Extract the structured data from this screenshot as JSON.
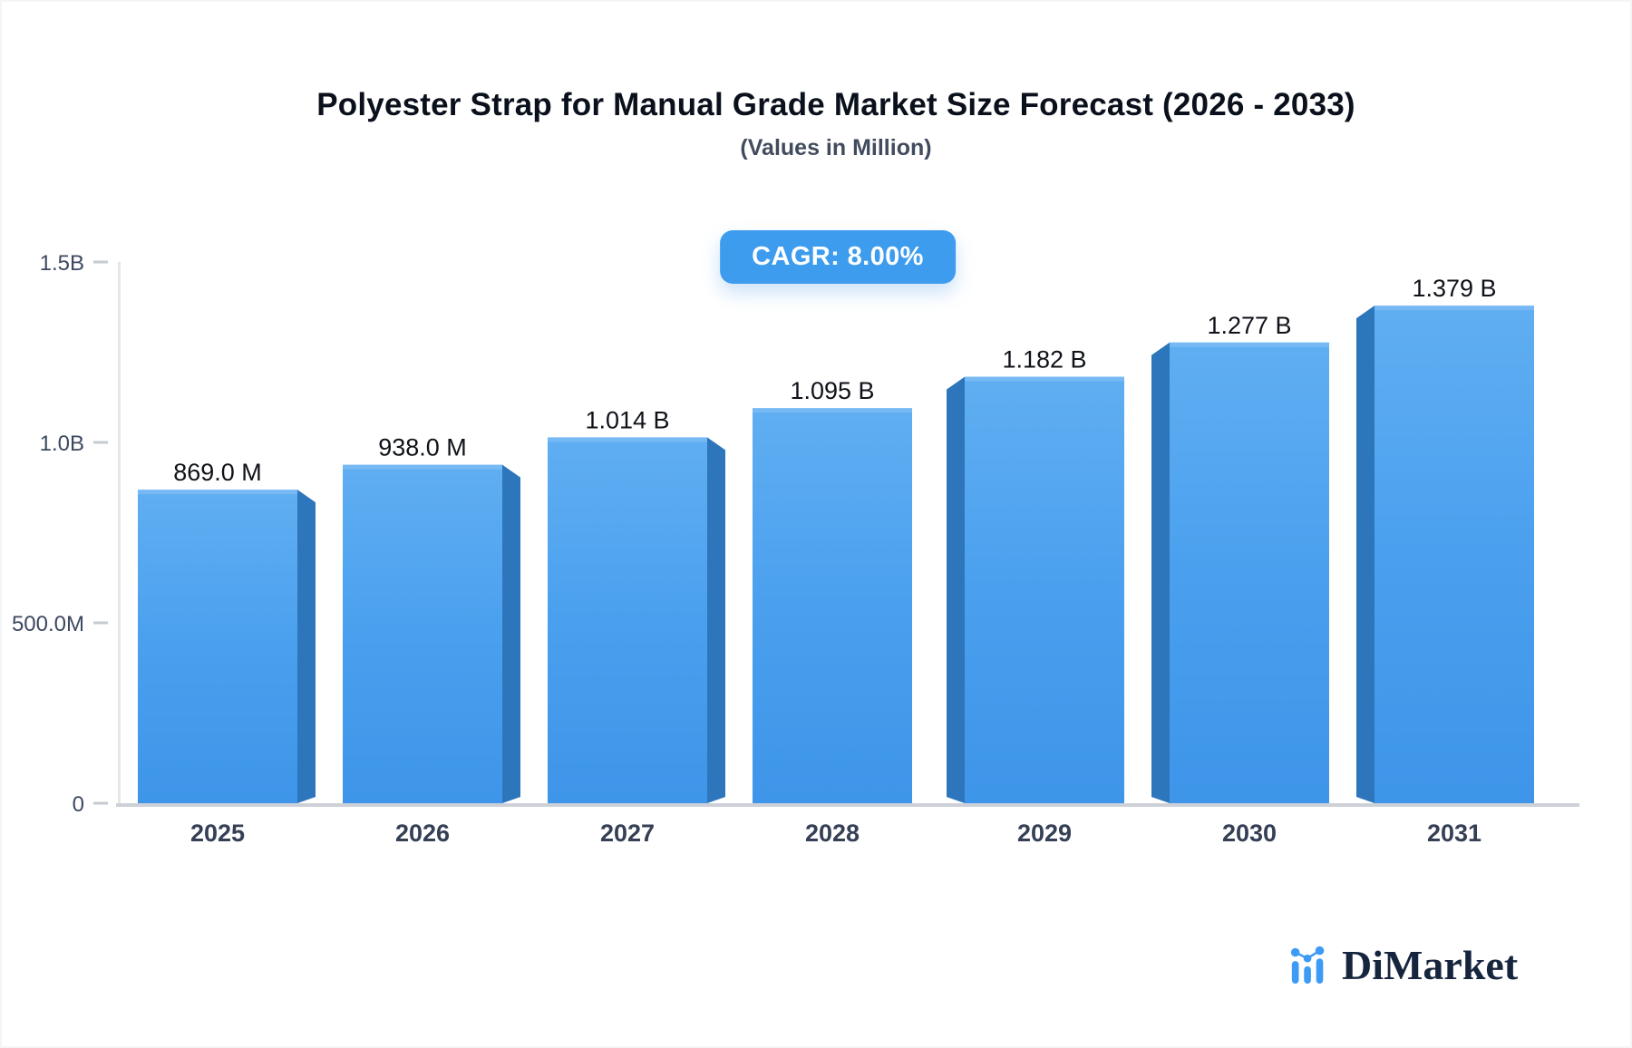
{
  "title": "Polyester Strap for Manual Grade Market Size Forecast (2026 - 2033)",
  "subtitle": "(Values in Million)",
  "cagr_badge": "CAGR: 8.00%",
  "logo": {
    "text": "DiMarket",
    "icon": "bar-chart-with-trend-dots"
  },
  "colors": {
    "badge_bg": "#3d9cee",
    "bar_front_top": "#60aef2",
    "bar_front_bottom": "#3e95e9",
    "bar_side": "#2e76bb",
    "axis_line": "#e3e6ea",
    "baseline": "#cdd1d7",
    "tick": "#c6cbd2",
    "value_label": "#0f1218",
    "year_label": "#353f55",
    "y_label": "#3d4961",
    "logo_blue": "#3d9bf5",
    "logo_navy": "#16253e"
  },
  "chart_data": {
    "type": "bar",
    "title": "Polyester Strap for Manual Grade Market Size Forecast (2026 - 2033)",
    "subtitle": "(Values in Million)",
    "annotation": "CAGR: 8.00%",
    "categories": [
      "2025",
      "2026",
      "2027",
      "2028",
      "2029",
      "2030",
      "2031"
    ],
    "values_millions": [
      869,
      938,
      1014,
      1095,
      1182,
      1277,
      1379
    ],
    "bar_labels": [
      "869.0 M",
      "938.0 M",
      "1.014 B",
      "1.095 B",
      "1.182 B",
      "1.277 B",
      "1.379 B"
    ],
    "xlabel": "",
    "ylabel": "",
    "ylim_millions": [
      0,
      1500
    ],
    "y_ticks": [
      {
        "label": "1.5B",
        "value_millions": 1500
      },
      {
        "label": "1.0B",
        "value_millions": 1000
      },
      {
        "label": "500.0M",
        "value_millions": 500
      },
      {
        "label": "0",
        "value_millions": 0
      }
    ],
    "grid": false,
    "legend": "none",
    "bar_style": "3d-extruded-perspective"
  }
}
